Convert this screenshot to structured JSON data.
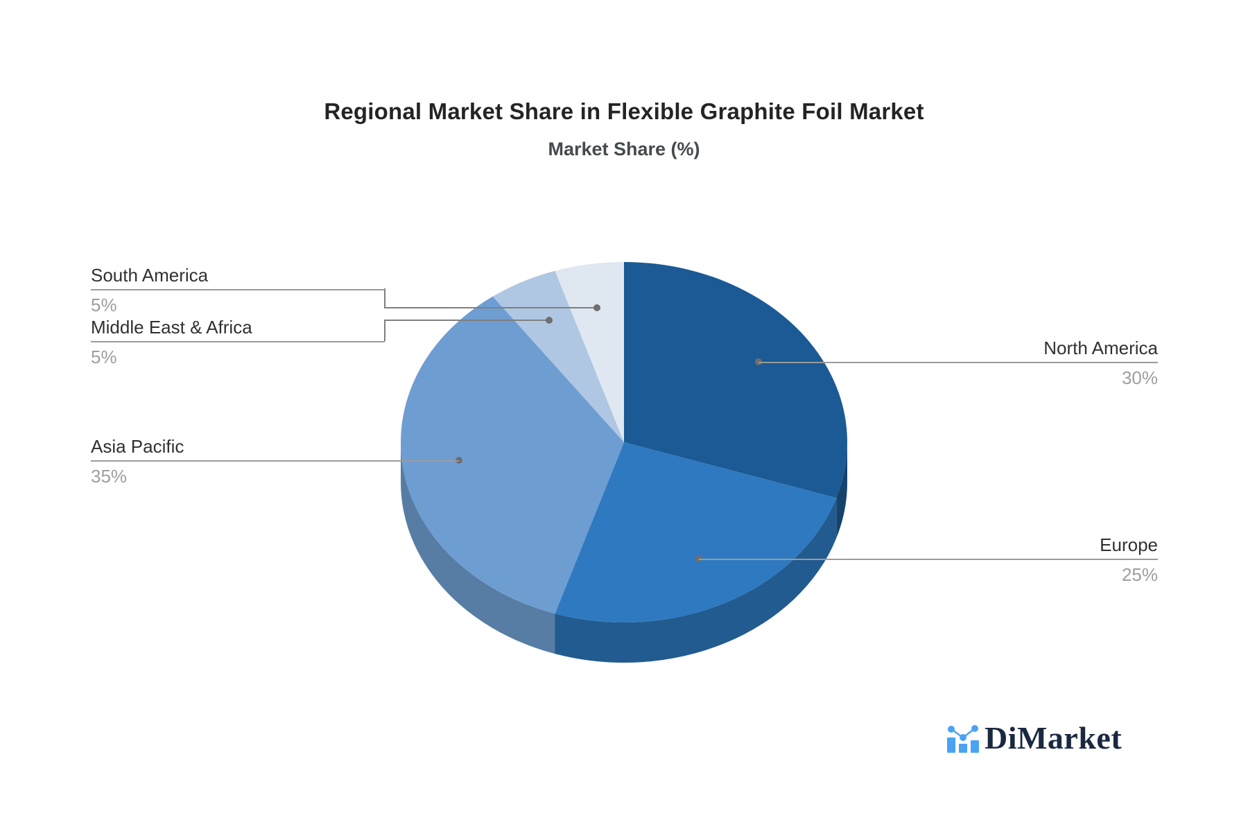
{
  "page": {
    "background": "#FFFFFF"
  },
  "chart_data": {
    "type": "pie",
    "style": "3d",
    "title": "Regional Market Share in Flexible Graphite Foil Market",
    "subtitle": "Market Share (%)",
    "unit": "%",
    "rotation": "clockwise",
    "start_angle_deg": 0,
    "legend_position": "callout-labels",
    "slices": [
      {
        "label": "North America",
        "value": 30,
        "pct": "30%",
        "color": "#1B5A94",
        "side_color": "#16436D"
      },
      {
        "label": "Europe",
        "value": 25,
        "pct": "25%",
        "color": "#2E79C0",
        "side_color": "#225B8F"
      },
      {
        "label": "Asia Pacific",
        "value": 35,
        "pct": "35%",
        "color": "#6E9DD2",
        "side_color": "#577DA4"
      },
      {
        "label": "Middle East & Africa",
        "value": 5,
        "pct": "5%",
        "color": "#AFC7E3",
        "side_color": "#8CA6C2"
      },
      {
        "label": "South America",
        "value": 5,
        "pct": "5%",
        "color": "#DFE7F1",
        "side_color": "#B7C4D4"
      }
    ]
  },
  "callouts": {
    "line_color": "#7F7F7F",
    "underline_color": "#9B9B9B",
    "dot_color": "#6E6E6E",
    "label_color": "#303030",
    "value_color": "#9E9E9E"
  },
  "brand": {
    "name": "DiMarket",
    "icon": "bar-chart-trend-icon",
    "icon_color": "#4AA2F2",
    "text_color": "#1A2940"
  }
}
